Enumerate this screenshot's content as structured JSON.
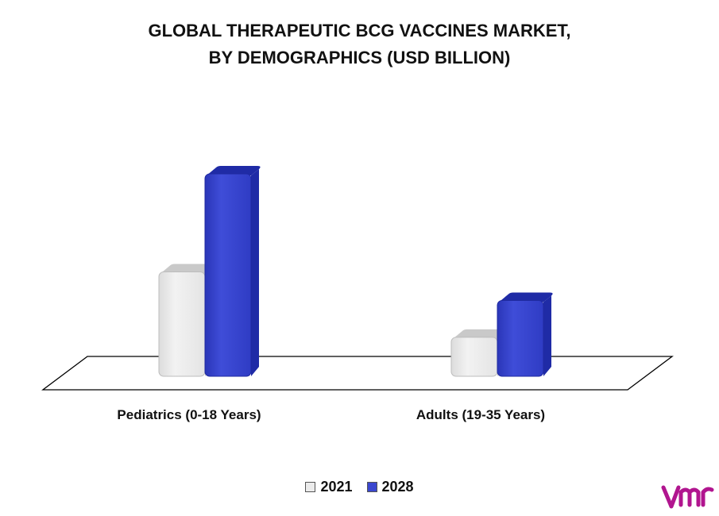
{
  "title_line1": "GLOBAL THERAPEUTIC BCG VACCINES MARKET,",
  "title_line2": "BY DEMOGRAPHICS (USD BILLION)",
  "colors": {
    "s2021": "#ebebeb",
    "s2028": "#3a47cf",
    "s2028_dark": "#1e2aa3",
    "s2021_dark": "#b9b9b9"
  },
  "logo_icon": "vmr-logo",
  "chart_data": {
    "type": "bar",
    "title": "GLOBAL THERAPEUTIC BCG VACCINES MARKET, BY DEMOGRAPHICS (USD BILLION)",
    "categories": [
      "Pediatrics (0-18 Years)",
      "Adults (19-35 Years)"
    ],
    "series": [
      {
        "name": "2021",
        "values": [
          0.55,
          0.23
        ]
      },
      {
        "name": "2028",
        "values": [
          1.03,
          0.41
        ]
      }
    ],
    "ylim": [
      0,
      1.1
    ],
    "grid": false,
    "legend_position": "bottom"
  }
}
